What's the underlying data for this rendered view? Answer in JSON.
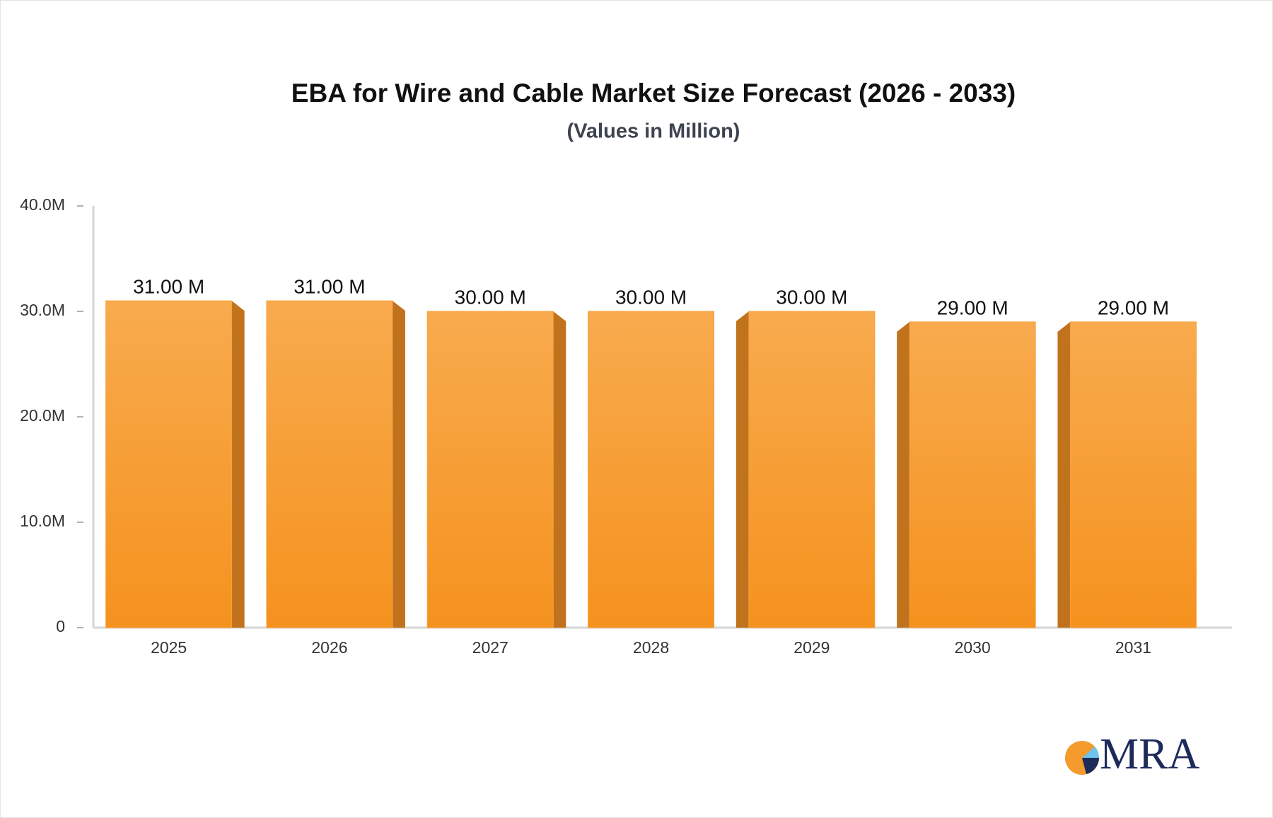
{
  "chart_data": {
    "type": "bar",
    "title": "EBA for Wire and Cable Market Size Forecast (2026 - 2033)",
    "subtitle": "(Values in Million)",
    "categories": [
      "2025",
      "2026",
      "2027",
      "2028",
      "2029",
      "2030",
      "2031"
    ],
    "values": [
      31,
      31,
      30,
      30,
      30,
      29,
      29
    ],
    "value_labels": [
      "31.00 M",
      "31.00 M",
      "30.00 M",
      "30.00 M",
      "30.00 M",
      "29.00 M",
      "29.00 M"
    ],
    "color": "#f7a040",
    "ylim": [
      0,
      40
    ],
    "yticks": [
      0,
      {
        "value": 10,
        "label": "10.0M"
      },
      {
        "value": 20,
        "label": "20.0M"
      },
      {
        "value": 30,
        "label": "30.0M"
      },
      {
        "value": 40,
        "label": "40.0M"
      }
    ],
    "grid": false
  },
  "logo": {
    "text": "MRA"
  }
}
